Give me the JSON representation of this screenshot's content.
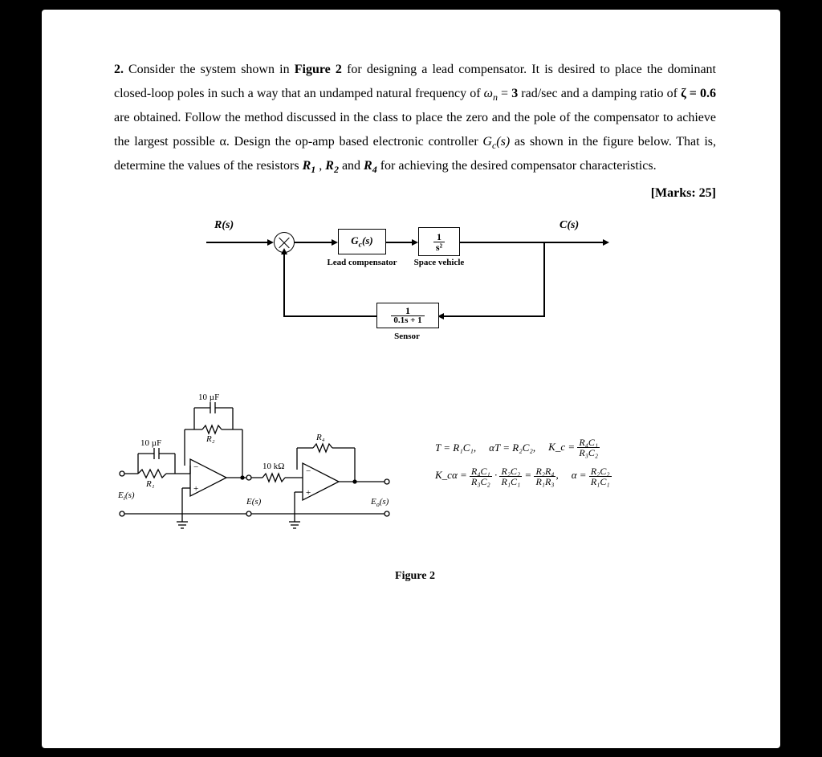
{
  "question": {
    "number": "2.",
    "body_parts": [
      "Consider the system shown in ",
      {
        "bold": "Figure 2"
      },
      " for designing a lead compensator. It is desired to place the dominant closed-loop poles in such a way that an undamped natural frequency of ",
      {
        "math": "ω",
        "sub": "n"
      },
      " = ",
      {
        "bold": "3"
      },
      " rad/sec and a damping ratio of ",
      {
        "bold": "ζ = 0.6"
      },
      " are obtained. Follow the method discussed in the class to place the zero and the pole of the compensator to achieve the largest possible α. Design the op-amp based electronic controller ",
      {
        "math": "G",
        "sub": "c"
      },
      {
        "math": "(s)"
      },
      " as shown in the figure below. That is, determine the values of the resistors ",
      {
        "boldmath": "R",
        "sub": "1"
      },
      " , ",
      {
        "boldmath": "R",
        "sub": "2"
      },
      " and ",
      {
        "boldmath": "R",
        "sub": "4"
      },
      " for achieving the desired compensator characteristics."
    ],
    "marks": "[Marks: 25]"
  },
  "block_diagram": {
    "input_label": "R(s)",
    "output_label": "C(s)",
    "gc_block": "G_c(s)",
    "gc_caption": "Lead compensator",
    "plant_num": "1",
    "plant_den": "s²",
    "plant_caption": "Space vehicle",
    "sensor_num": "1",
    "sensor_den": "0.1s + 1",
    "sensor_caption": "Sensor"
  },
  "circuit": {
    "c1_label": "10 µF",
    "c2_label": "10 µF",
    "r1_label": "R₁",
    "r2_label": "R₂",
    "r3_label": "10 kΩ",
    "r4_label": "R₄",
    "ei_label": "E_i(s)",
    "e_label": "E(s)",
    "eo_label": "E_o(s)"
  },
  "equations": {
    "line1": {
      "T": "T = R₁C₁,",
      "aT": "αT = R₂C₂,",
      "Kc_lhs": "K_c =",
      "Kc_num": "R₄C₁",
      "Kc_den": "R₃C₂"
    },
    "line2": {
      "Kca_lhs": "K_cα =",
      "f1n": "R₄C₁",
      "f1d": "R₃C₂",
      "f2n": "R₂C₂",
      "f2d": "R₁C₁",
      "eq": "=",
      "f3n": "R₂R₄",
      "f3d": "R₁R₃",
      "comma": ",",
      "a_lhs": "α =",
      "a_num": "R₂C₂",
      "a_den": "R₁C₁"
    }
  },
  "figure_caption": "Figure 2",
  "colors": {
    "page_bg": "#ffffff",
    "body_bg": "#000000",
    "text": "#000000",
    "stroke": "#000000"
  }
}
